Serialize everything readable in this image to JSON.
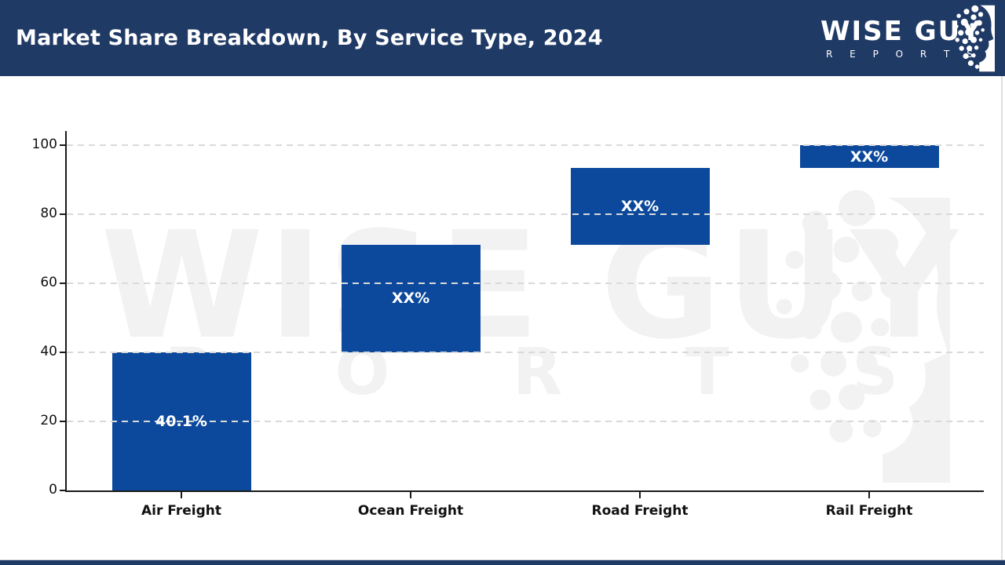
{
  "header": {
    "title": "Market Share Breakdown, By Service Type, 2024",
    "logo": {
      "line1": "WISE GUY",
      "line2": "R E P O R T S"
    }
  },
  "watermark": {
    "line1": "WISE GUY",
    "line2": "P O R T S"
  },
  "chart_data": {
    "type": "bar",
    "subtype": "stacked-percentage-waterfall",
    "title": "Market Share Breakdown, By Service Type, 2024",
    "categories": [
      "Air Freight",
      "Ocean Freight",
      "Road Freight",
      "Rail Freight"
    ],
    "series": [
      {
        "name": "Air Freight",
        "start": 0,
        "end": 40.1,
        "label": "40.1%"
      },
      {
        "name": "Ocean Freight",
        "start": 40.1,
        "end": 71.1,
        "label": "XX%"
      },
      {
        "name": "Road Freight",
        "start": 71.1,
        "end": 93.3,
        "label": "XX%"
      },
      {
        "name": "Rail Freight",
        "start": 93.3,
        "end": 100,
        "label": "XX%"
      }
    ],
    "yticks": [
      0,
      20,
      40,
      60,
      80,
      100
    ],
    "ylim": [
      0,
      105
    ],
    "xlabel": "",
    "ylabel": "",
    "grid": "dashed-horizontal",
    "legend": "none",
    "bar_color": "#0C499C",
    "bar_label_color": "#ffffff",
    "axis_color": "#1a1a1a",
    "grid_color": "#d9d9d9",
    "header_color": "#203A66"
  }
}
